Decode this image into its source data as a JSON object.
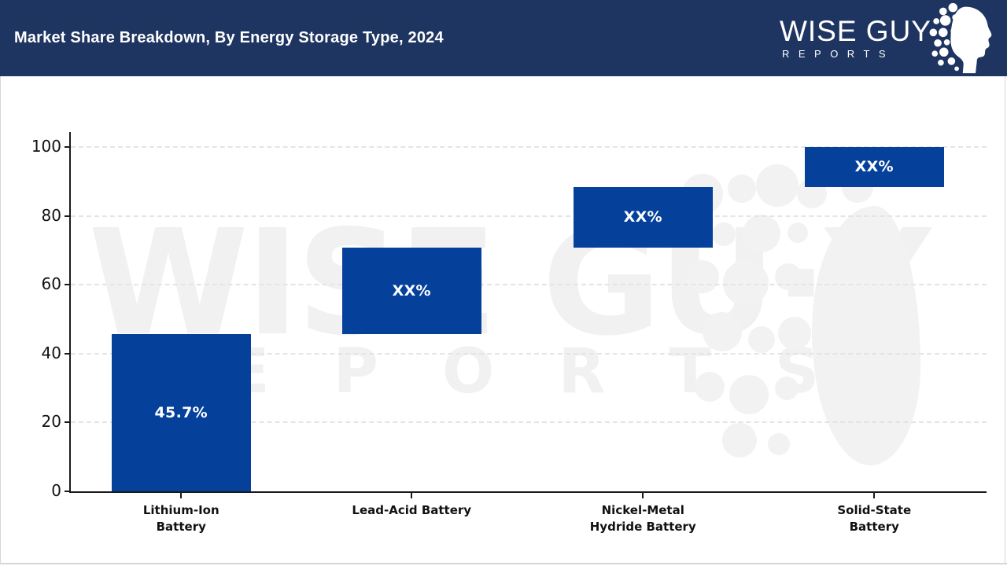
{
  "header": {
    "title": "Market Share Breakdown, By Energy Storage Type, 2024",
    "logo": {
      "line1": "WISE GUY",
      "line2": "REPORTS"
    }
  },
  "watermark": {
    "line1": "WISE GU·Y",
    "line2": "R E P O R T S"
  },
  "chart_data": {
    "type": "bar",
    "subtype": "waterfall",
    "title": "Market Share Breakdown, By Energy Storage Type, 2024",
    "categories": [
      "Lithium-Ion\nBattery",
      "Lead-Acid Battery",
      "Nickel-Metal\nHydride Battery",
      "Solid-State\nBattery"
    ],
    "segments": [
      {
        "label": "45.7%",
        "start": 0,
        "end": 45.7
      },
      {
        "label": "XX%",
        "start": 45.7,
        "end": 70.8
      },
      {
        "label": "XX%",
        "start": 70.8,
        "end": 88.4
      },
      {
        "label": "XX%",
        "start": 88.4,
        "end": 100
      }
    ],
    "yticks": [
      0,
      20,
      40,
      60,
      80,
      100
    ],
    "ylim": [
      0,
      100
    ],
    "xlabel": "",
    "ylabel": "",
    "grid": "horizontal-dashed",
    "legend": "none",
    "bar_color": "#05419B",
    "bar_label_color": "#ffffff",
    "header_color": "#1F3561"
  }
}
